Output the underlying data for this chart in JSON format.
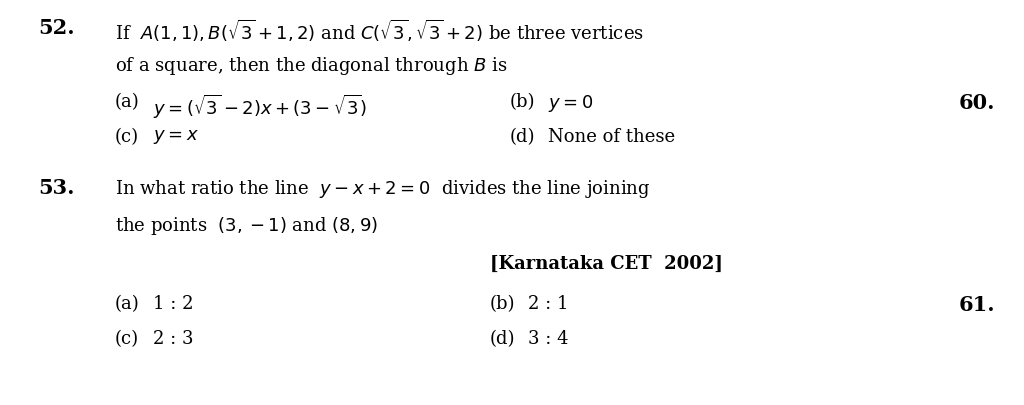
{
  "bg_color": "#ffffff",
  "q52_number": "52.",
  "q52_line1_a": "If  ",
  "q52_line1_b": "$A(1,1), B(\\sqrt{3}+1,2)$ and $C(\\sqrt{3}, \\sqrt{3}+2)$ be three vertices",
  "q52_line2": "of a square, then the diagonal through $B$ is",
  "q52_a_label": "(a)",
  "q52_a_text": "$y = (\\sqrt{3}-2)x+(3-\\sqrt{3})$",
  "q52_b_label": "(b)",
  "q52_b_text": "$y=0$",
  "q52_c_label": "(c)",
  "q52_c_text": "$y=x$",
  "q52_d_label": "(d)",
  "q52_d_text": "None of these",
  "q52_right": "60.",
  "q53_number": "53.",
  "q53_line1": "In what ratio the line  $y-x+2=0$  divides the line joining",
  "q53_line2": "the points  $(3,-1)$ and $(8,9)$",
  "q53_ref": "[Karnataka CET  2002]",
  "q53_a_label": "(a)",
  "q53_a_text": "1 : 2",
  "q53_b_label": "(b)",
  "q53_b_text": "2 : 1",
  "q53_c_label": "(c)",
  "q53_c_text": "2 : 3",
  "q53_d_label": "(d)",
  "q53_d_text": "3 : 4",
  "q53_right": "61."
}
